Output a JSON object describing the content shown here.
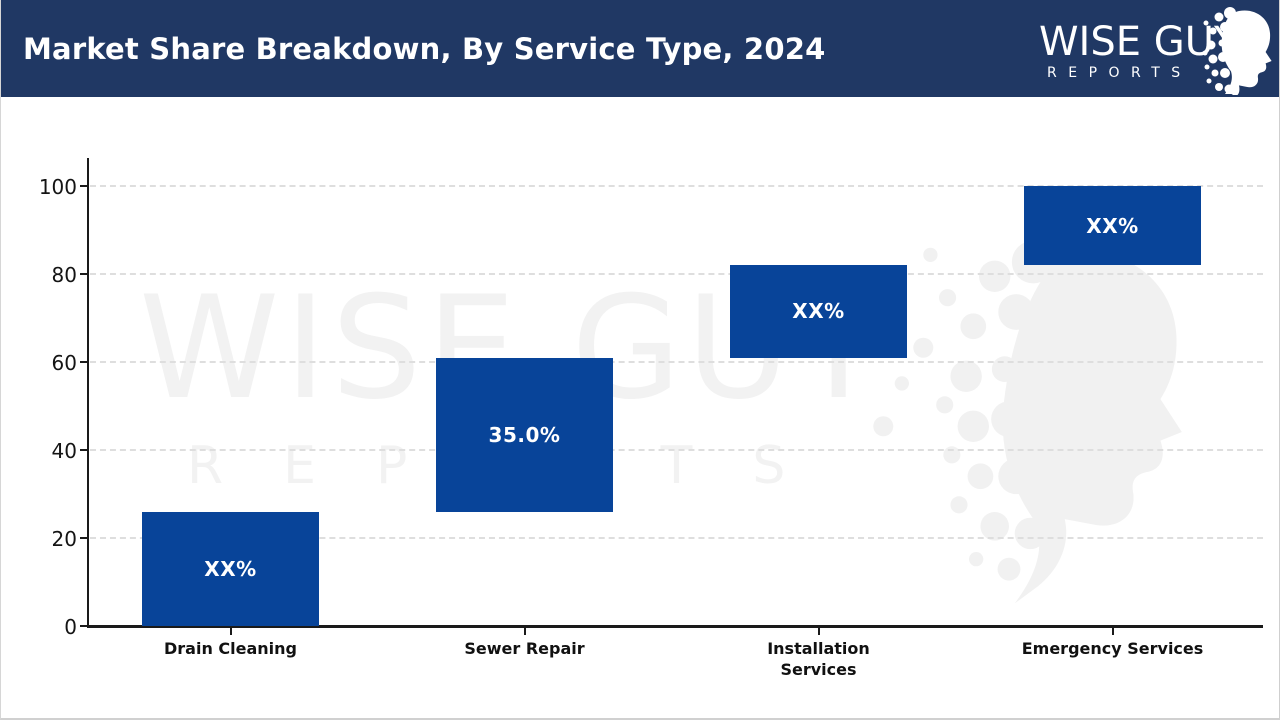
{
  "header": {
    "title": "Market Share Breakdown, By Service Type, 2024",
    "logo": {
      "line1": "WISE GUY",
      "line2": "REPORTS"
    }
  },
  "watermark": {
    "line1": "WISE GUY",
    "line2": "REPORTS"
  },
  "colors": {
    "header_bg": "#203864",
    "bar_blue": "#084499",
    "axis": "#1a1a1a",
    "gridline": "#dedede",
    "watermark": "#f2f2f2",
    "label_white": "#ffffff",
    "text_dark": "#111111"
  },
  "chart_data": {
    "type": "bar",
    "subtype": "waterfall",
    "title": "Market Share Breakdown, By Service Type, 2024",
    "categories": [
      "Drain Cleaning",
      "Sewer Repair",
      "Installation\nServices",
      "Emergency Services"
    ],
    "segments": [
      {
        "category": "Drain Cleaning",
        "start": 0,
        "end": 26,
        "value_label": "XX%"
      },
      {
        "category": "Sewer Repair",
        "start": 26,
        "end": 61,
        "value_label": "35.0%"
      },
      {
        "category": "Installation\nServices",
        "start": 61,
        "end": 82,
        "value_label": "XX%"
      },
      {
        "category": "Emergency Services",
        "start": 82,
        "end": 100,
        "value_label": "XX%"
      }
    ],
    "xlabel": "",
    "ylabel": "",
    "ylim": [
      0,
      100
    ],
    "yticks": [
      0,
      20,
      40,
      60,
      80,
      100
    ],
    "grid": "horizontal-dashed",
    "legend": "none",
    "bar_color": "#084499"
  }
}
